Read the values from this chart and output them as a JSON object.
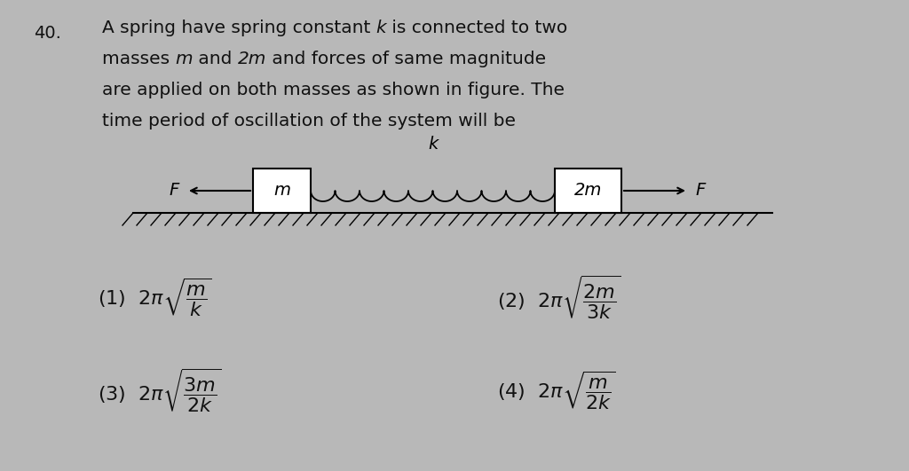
{
  "background_color": "#b8b8b8",
  "text_color": "#111111",
  "question_number": "40.",
  "options": [
    {
      "num": "(1)",
      "expr": "$2\\pi\\sqrt{\\dfrac{m}{k}}$"
    },
    {
      "num": "(2)",
      "expr": "$2\\pi\\sqrt{\\dfrac{2m}{3k}}$"
    },
    {
      "num": "(3)",
      "expr": "$2\\pi\\sqrt{\\dfrac{3m}{2k}}$"
    },
    {
      "num": "(4)",
      "expr": "$2\\pi\\sqrt{\\dfrac{m}{2k}}$"
    }
  ],
  "diagram": {
    "mass_m_label": "m",
    "mass_2m_label": "2m",
    "spring_label": "k",
    "force_label": "F"
  },
  "fig_width": 10.24,
  "fig_height": 5.31,
  "dpi": 100
}
